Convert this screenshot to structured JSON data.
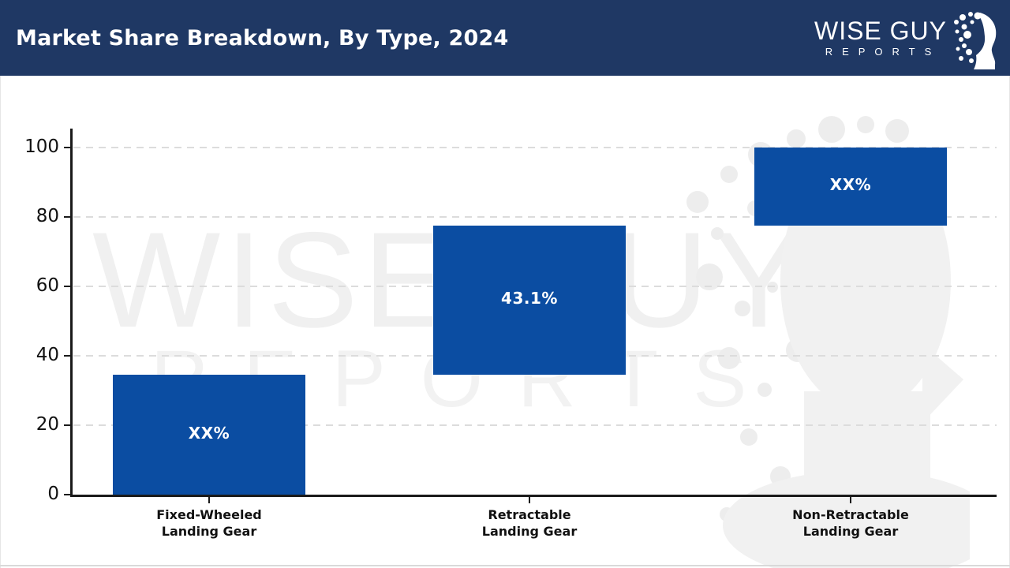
{
  "header": {
    "title": "Market Share Breakdown, By Type, 2024",
    "logo": {
      "line1": "WISE GUY",
      "line2": "REPORTS"
    }
  },
  "watermark": {
    "line1": "WISE GUY",
    "line2": "REPORTS"
  },
  "chart_data": {
    "type": "bar",
    "variant": "segmented breakdown - each floating bar starts where the previous one ends",
    "title": "Market Share Breakdown, By Type, 2024",
    "categories": [
      "Fixed-Wheeled Landing Gear",
      "Retractable Landing Gear",
      "Non-Retractable Landing Gear"
    ],
    "category_lines": [
      [
        "Fixed-Wheeled",
        "Landing Gear"
      ],
      [
        "Retractable",
        "Landing Gear"
      ],
      [
        "Non-Retractable",
        "Landing Gear"
      ]
    ],
    "series": [
      {
        "name": "Market share (%)",
        "segments": [
          {
            "category": "Fixed-Wheeled Landing Gear",
            "start": 0,
            "end": 34.5,
            "value_label": "XX%"
          },
          {
            "category": "Retractable Landing Gear",
            "start": 34.5,
            "end": 77.6,
            "value_label": "43.1%"
          },
          {
            "category": "Non-Retractable Landing Gear",
            "start": 77.6,
            "end": 100,
            "value_label": "XX%"
          }
        ]
      }
    ],
    "ylim": [
      0,
      100
    ],
    "yticks": [
      0,
      20,
      40,
      60,
      80,
      100
    ],
    "xlabel": "",
    "ylabel": "",
    "grid": "horizontal dashed",
    "legend": "none",
    "colors": {
      "bar": "#0b4da2",
      "bar_label": "#ffffff",
      "header_bg": "#1f3864",
      "header_text": "#ffffff",
      "grid": "#dcdcdc",
      "axis": "#1a1a1a",
      "watermark": "#f0f0f0"
    }
  }
}
